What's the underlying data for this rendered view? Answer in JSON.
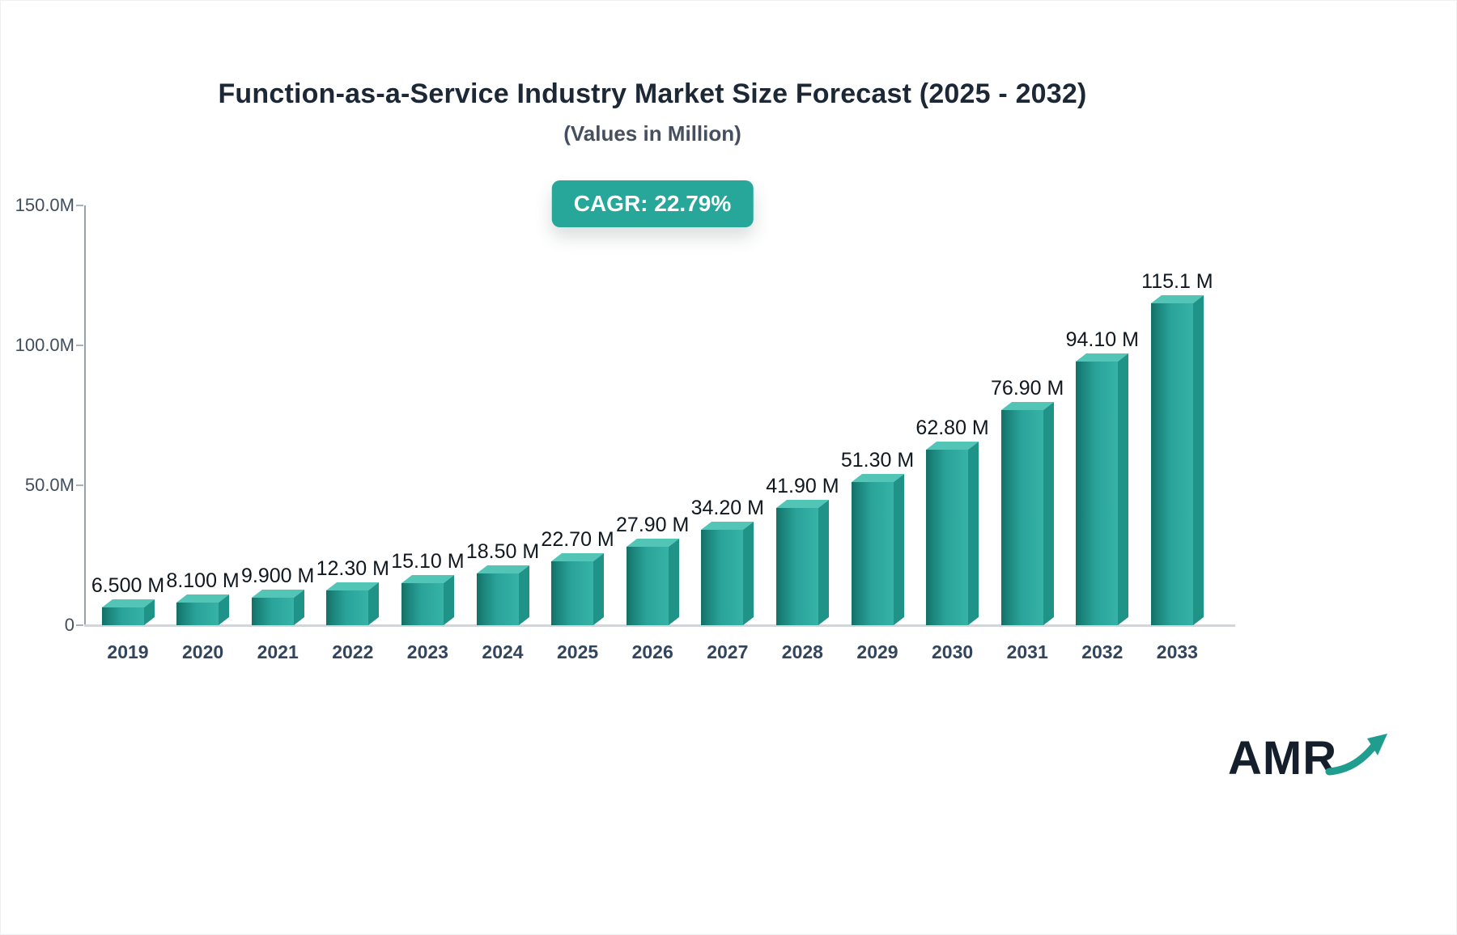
{
  "header": {
    "title": "Function-as-a-Service Industry Market Size Forecast (2025 - 2032)",
    "subtitle": "(Values in Million)",
    "cagr_badge": "CAGR: 22.79%"
  },
  "logo": {
    "text": "AMR"
  },
  "colors": {
    "accent": "#27a79a",
    "badge_bg": "#27a79a",
    "badge_text": "#ffffff",
    "bar_front": "#2aa49a",
    "bar_front_dark": "#147066",
    "bar_front_light": "#37b2a6",
    "bar_top": "#52c5b6",
    "bar_side": "#1f9388",
    "axis_line": "#98a1ab",
    "baseline": "#d2d6db",
    "title_text": "#1d2836",
    "label_text": "#10181f",
    "year_text": "#33455c",
    "logo_text": "#141f2b",
    "logo_arrow": "#1f9e90"
  },
  "chart_data": {
    "type": "bar",
    "title": "Function-as-a-Service Industry Market Size Forecast (2025 - 2032)",
    "subtitle": "(Values in Million)",
    "cagr": "22.79%",
    "categories": [
      "2019",
      "2020",
      "2021",
      "2022",
      "2023",
      "2024",
      "2025",
      "2026",
      "2027",
      "2028",
      "2029",
      "2030",
      "2031",
      "2032",
      "2033"
    ],
    "values": [
      6.5,
      8.1,
      9.9,
      12.3,
      15.1,
      18.5,
      22.7,
      27.9,
      34.2,
      41.9,
      51.3,
      62.8,
      76.9,
      94.1,
      115.1
    ],
    "value_labels": [
      "6.500 M",
      "8.100 M",
      "9.900 M",
      "12.30 M",
      "15.10 M",
      "18.50 M",
      "22.70 M",
      "27.90 M",
      "34.20 M",
      "41.90 M",
      "51.30 M",
      "62.80 M",
      "76.90 M",
      "94.10 M",
      "115.1 M"
    ],
    "xlabel": "",
    "ylabel": "",
    "ylim": [
      0,
      150
    ],
    "yticks": [
      {
        "label": "150.0M",
        "value": 150
      },
      {
        "label": "100.0M",
        "value": 100
      },
      {
        "label": "50.0M",
        "value": 50
      },
      {
        "label": "0",
        "value": 0
      }
    ],
    "grid": false,
    "legend": false
  }
}
